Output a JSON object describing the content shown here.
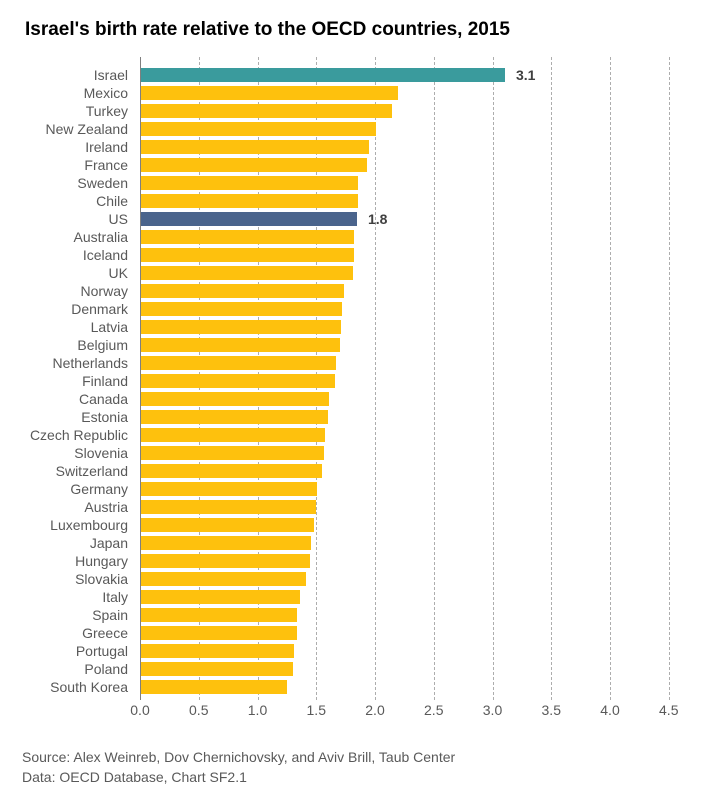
{
  "title": "Israel's birth rate relative to the OECD countries, 2015",
  "footer": {
    "source": "Source: Alex Weinreb, Dov Chernichovsky, and Aviv Brill, Taub Center",
    "data": "Data: OECD Database, Chart SF2.1"
  },
  "colors": {
    "israel_bar": "#3A9B9D",
    "oecd_bar": "#FEC10D",
    "us_bar": "#4A648C",
    "label_text": "#595959",
    "value_text": "#404040",
    "gridline": "#ADADAD",
    "axis_line": "#7F7F7F",
    "title_text": "#000000"
  },
  "chart_data": {
    "type": "bar",
    "orientation": "horizontal",
    "title": "Israel's birth rate relative to the OECD countries, 2015",
    "xlabel": "",
    "ylabel": "",
    "xlim": [
      0,
      4.5
    ],
    "grid": "vertical dashed gridlines every 0.5",
    "legend": "none",
    "categories": [
      "Israel",
      "Mexico",
      "Turkey",
      "New Zealand",
      "Ireland",
      "France",
      "Sweden",
      "Chile",
      "US",
      "Australia",
      "Iceland",
      "UK",
      "Norway",
      "Denmark",
      "Latvia",
      "Belgium",
      "Netherlands",
      "Finland",
      "Canada",
      "Estonia",
      "Czech Republic",
      "Slovenia",
      "Switzerland",
      "Germany",
      "Austria",
      "Luxembourg",
      "Japan",
      "Hungary",
      "Slovakia",
      "Italy",
      "Spain",
      "Greece",
      "Portugal",
      "Poland",
      "South Korea"
    ],
    "values": [
      3.1,
      2.19,
      2.14,
      2.0,
      1.94,
      1.92,
      1.85,
      1.85,
      1.84,
      1.81,
      1.81,
      1.8,
      1.73,
      1.71,
      1.7,
      1.69,
      1.66,
      1.65,
      1.6,
      1.59,
      1.57,
      1.56,
      1.54,
      1.5,
      1.49,
      1.47,
      1.45,
      1.44,
      1.4,
      1.35,
      1.33,
      1.33,
      1.3,
      1.29,
      1.24
    ],
    "xticks": [
      "0.0",
      "0.5",
      "1.0",
      "1.5",
      "2.0",
      "2.5",
      "3.0",
      "3.5",
      "4.0",
      "4.5"
    ],
    "highlights": {
      "Israel": "israel_bar",
      "US": "us_bar"
    },
    "default_color_key": "oecd_bar",
    "value_labels": [
      {
        "category": "Israel",
        "text": "3.1"
      },
      {
        "category": "US",
        "text": "1.8"
      }
    ]
  }
}
